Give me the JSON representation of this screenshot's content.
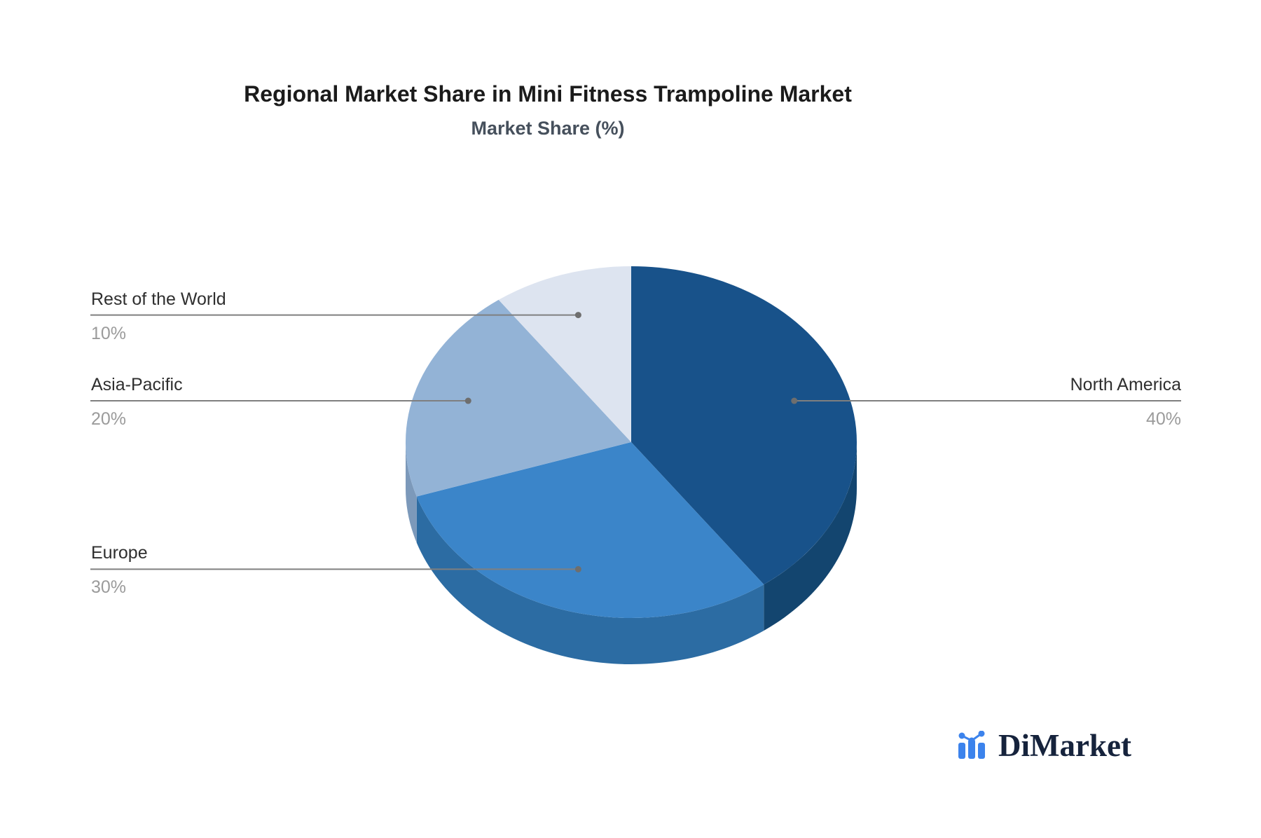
{
  "header": {
    "title": "Regional Market Share in Mini Fitness Trampoline Market",
    "subtitle": "Market Share (%)"
  },
  "chart_data": {
    "type": "pie",
    "effect": "3d",
    "title": "Regional Market Share in Mini Fitness Trampoline Market",
    "subtitle": "Market Share (%)",
    "unit": "%",
    "start_angle_deg": 0,
    "direction": "clockwise",
    "legend": "none",
    "slices": [
      {
        "id": "north-america",
        "label": "North America",
        "value": 40,
        "pct_label": "40%",
        "color": "#18528A",
        "side_color": "#13456F",
        "label_side": "right"
      },
      {
        "id": "europe",
        "label": "Europe",
        "value": 30,
        "pct_label": "30%",
        "color": "#3B85C9",
        "side_color": "#2C6CA3",
        "label_side": "left"
      },
      {
        "id": "asia-pacific",
        "label": "Asia-Pacific",
        "value": 20,
        "pct_label": "20%",
        "color": "#93B3D6",
        "side_color": "#7C99BA",
        "label_side": "left"
      },
      {
        "id": "rest-of-the-world",
        "label": "Rest of the World",
        "value": 10,
        "pct_label": "10%",
        "color": "#DDE4F0",
        "side_color": "#C7D1E1",
        "label_side": "left"
      }
    ],
    "leader_line_color": "#7F7F7F",
    "leader_dot_color": "#6E6E6E",
    "label_text_color": "#2F2F2F",
    "pct_text_color": "#9B9B9B"
  },
  "branding": {
    "logo_text": "DiMarket",
    "logo_color": "#16233C",
    "icon_color": "#3C83EC",
    "icon_name": "bar-line-chart-icon"
  }
}
